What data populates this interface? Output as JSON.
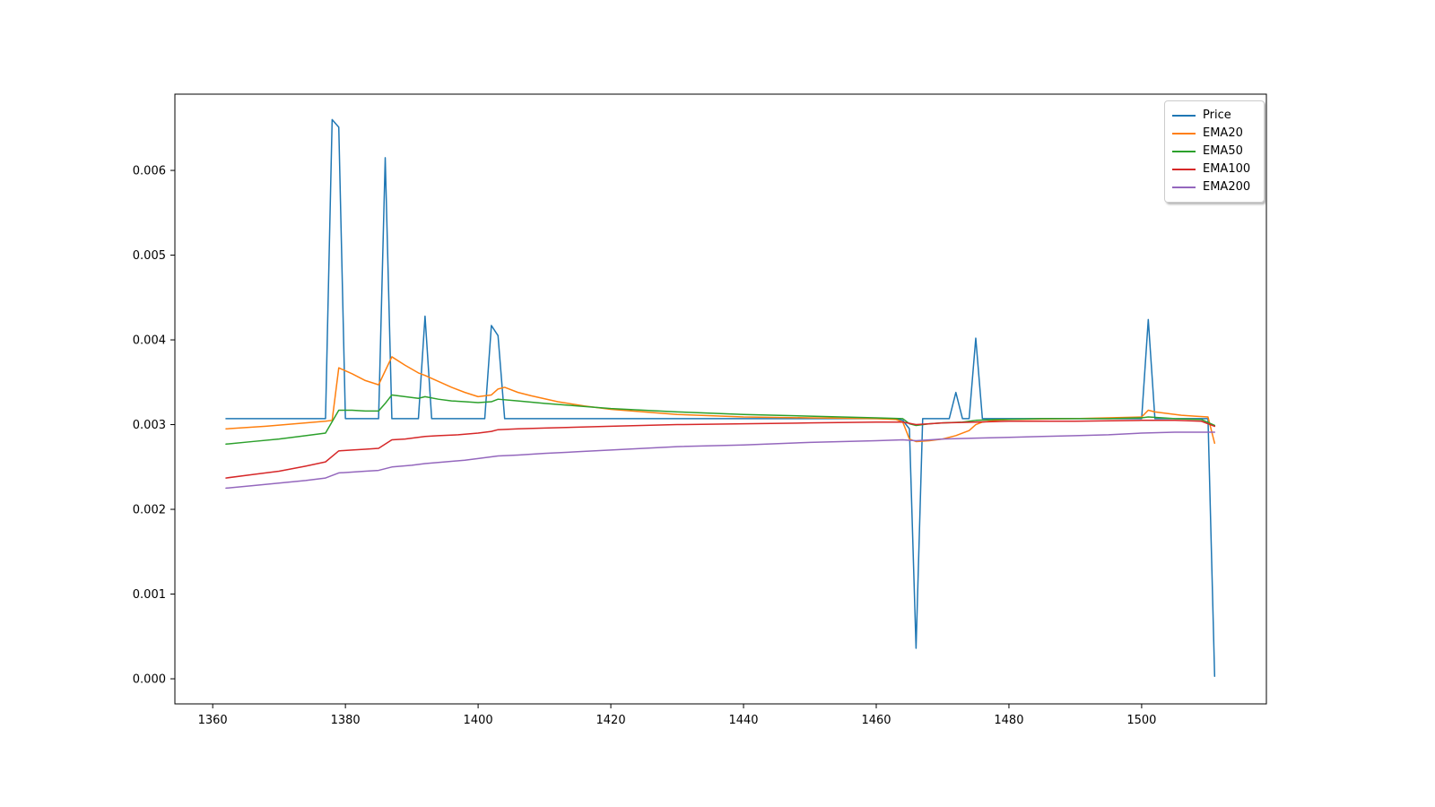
{
  "figure": {
    "background": "#ffffff",
    "axes_border_color": "#000000",
    "tick_color": "#000000",
    "tick_label_color": "#000000"
  },
  "chart_data": {
    "type": "line",
    "title": "",
    "xlabel": "",
    "ylabel": "",
    "grid": false,
    "legend_position": "upper right",
    "xlim": [
      1354.3,
      1518.8
    ],
    "ylim": [
      -0.000296,
      0.0069
    ],
    "x_ticks": [
      1360,
      1380,
      1400,
      1420,
      1440,
      1460,
      1480,
      1500
    ],
    "x_tick_labels": [
      "1360",
      "1380",
      "1400",
      "1420",
      "1440",
      "1460",
      "1480",
      "1500"
    ],
    "y_ticks": [
      0.0,
      0.001,
      0.002,
      0.003,
      0.004,
      0.005,
      0.006
    ],
    "y_tick_labels": [
      "0.000",
      "0.001",
      "0.002",
      "0.003",
      "0.004",
      "0.005",
      "0.006"
    ],
    "series": [
      {
        "name": "Price",
        "color": "#1f77b4",
        "points": [
          [
            1362,
            0.00307
          ],
          [
            1377,
            0.00307
          ],
          [
            1378,
            0.0066
          ],
          [
            1379,
            0.00651
          ],
          [
            1380,
            0.00307
          ],
          [
            1385,
            0.00307
          ],
          [
            1386,
            0.00615
          ],
          [
            1387,
            0.00307
          ],
          [
            1391,
            0.00307
          ],
          [
            1392,
            0.00428
          ],
          [
            1393,
            0.00307
          ],
          [
            1401,
            0.00307
          ],
          [
            1402,
            0.00417
          ],
          [
            1403,
            0.00405
          ],
          [
            1404,
            0.00307
          ],
          [
            1440,
            0.00307
          ],
          [
            1463,
            0.00307
          ],
          [
            1464,
            0.00305
          ],
          [
            1465,
            0.00295
          ],
          [
            1466,
            0.00036
          ],
          [
            1467,
            0.00307
          ],
          [
            1471,
            0.00307
          ],
          [
            1472,
            0.00338
          ],
          [
            1473,
            0.00307
          ],
          [
            1474,
            0.00307
          ],
          [
            1475,
            0.00402
          ],
          [
            1476,
            0.00307
          ],
          [
            1490,
            0.00307
          ],
          [
            1500,
            0.00307
          ],
          [
            1501,
            0.00424
          ],
          [
            1502,
            0.00307
          ],
          [
            1510,
            0.00307
          ],
          [
            1511,
            3e-05
          ]
        ]
      },
      {
        "name": "EMA20",
        "color": "#ff7f0e",
        "points": [
          [
            1362,
            0.00295
          ],
          [
            1368,
            0.00298
          ],
          [
            1374,
            0.00302
          ],
          [
            1377,
            0.00304
          ],
          [
            1378,
            0.00305
          ],
          [
            1379,
            0.00367
          ],
          [
            1381,
            0.0036
          ],
          [
            1383,
            0.00352
          ],
          [
            1385,
            0.00347
          ],
          [
            1387,
            0.0038
          ],
          [
            1389,
            0.0037
          ],
          [
            1391,
            0.00361
          ],
          [
            1392,
            0.00358
          ],
          [
            1394,
            0.00351
          ],
          [
            1396,
            0.00344
          ],
          [
            1398,
            0.00338
          ],
          [
            1400,
            0.00333
          ],
          [
            1402,
            0.00335
          ],
          [
            1403,
            0.00342
          ],
          [
            1404,
            0.00344
          ],
          [
            1406,
            0.00338
          ],
          [
            1408,
            0.00334
          ],
          [
            1412,
            0.00327
          ],
          [
            1416,
            0.00322
          ],
          [
            1420,
            0.00318
          ],
          [
            1425,
            0.00315
          ],
          [
            1430,
            0.00312
          ],
          [
            1440,
            0.00309
          ],
          [
            1450,
            0.00308
          ],
          [
            1460,
            0.00307
          ],
          [
            1463,
            0.00306
          ],
          [
            1464,
            0.00303
          ],
          [
            1465,
            0.00283
          ],
          [
            1466,
            0.0028
          ],
          [
            1468,
            0.00281
          ],
          [
            1470,
            0.00283
          ],
          [
            1472,
            0.00287
          ],
          [
            1474,
            0.00293
          ],
          [
            1475,
            0.003
          ],
          [
            1476,
            0.00303
          ],
          [
            1478,
            0.00305
          ],
          [
            1480,
            0.00306
          ],
          [
            1490,
            0.00307
          ],
          [
            1500,
            0.00309
          ],
          [
            1501,
            0.00317
          ],
          [
            1502,
            0.00315
          ],
          [
            1504,
            0.00313
          ],
          [
            1506,
            0.00311
          ],
          [
            1508,
            0.0031
          ],
          [
            1510,
            0.00309
          ],
          [
            1511,
            0.00278
          ]
        ]
      },
      {
        "name": "EMA50",
        "color": "#2ca02c",
        "points": [
          [
            1362,
            0.00277
          ],
          [
            1366,
            0.0028
          ],
          [
            1370,
            0.00283
          ],
          [
            1374,
            0.00287
          ],
          [
            1377,
            0.0029
          ],
          [
            1379,
            0.00317
          ],
          [
            1381,
            0.00317
          ],
          [
            1383,
            0.00316
          ],
          [
            1385,
            0.00316
          ],
          [
            1386,
            0.00325
          ],
          [
            1387,
            0.00335
          ],
          [
            1389,
            0.00333
          ],
          [
            1391,
            0.00331
          ],
          [
            1392,
            0.00333
          ],
          [
            1394,
            0.0033
          ],
          [
            1396,
            0.00328
          ],
          [
            1398,
            0.00327
          ],
          [
            1400,
            0.00326
          ],
          [
            1402,
            0.00327
          ],
          [
            1403,
            0.0033
          ],
          [
            1406,
            0.00328
          ],
          [
            1410,
            0.00325
          ],
          [
            1415,
            0.00322
          ],
          [
            1420,
            0.00319
          ],
          [
            1430,
            0.00315
          ],
          [
            1440,
            0.00312
          ],
          [
            1450,
            0.0031
          ],
          [
            1460,
            0.00308
          ],
          [
            1464,
            0.00307
          ],
          [
            1465,
            0.00301
          ],
          [
            1466,
            0.00299
          ],
          [
            1468,
            0.00301
          ],
          [
            1470,
            0.00302
          ],
          [
            1473,
            0.00303
          ],
          [
            1475,
            0.00305
          ],
          [
            1478,
            0.00306
          ],
          [
            1485,
            0.00307
          ],
          [
            1495,
            0.00307
          ],
          [
            1500,
            0.00308
          ],
          [
            1501,
            0.00309
          ],
          [
            1505,
            0.00307
          ],
          [
            1509,
            0.00306
          ],
          [
            1511,
            0.00299
          ]
        ]
      },
      {
        "name": "EMA100",
        "color": "#d62728",
        "points": [
          [
            1362,
            0.00237
          ],
          [
            1366,
            0.00241
          ],
          [
            1370,
            0.00245
          ],
          [
            1374,
            0.00251
          ],
          [
            1377,
            0.00256
          ],
          [
            1379,
            0.00269
          ],
          [
            1381,
            0.0027
          ],
          [
            1383,
            0.00271
          ],
          [
            1385,
            0.00272
          ],
          [
            1387,
            0.00282
          ],
          [
            1389,
            0.00283
          ],
          [
            1392,
            0.00286
          ],
          [
            1394,
            0.00287
          ],
          [
            1397,
            0.00288
          ],
          [
            1400,
            0.0029
          ],
          [
            1402,
            0.00292
          ],
          [
            1403,
            0.00294
          ],
          [
            1406,
            0.00295
          ],
          [
            1410,
            0.00296
          ],
          [
            1415,
            0.00297
          ],
          [
            1420,
            0.00298
          ],
          [
            1430,
            0.003
          ],
          [
            1440,
            0.00301
          ],
          [
            1450,
            0.00302
          ],
          [
            1460,
            0.00303
          ],
          [
            1464,
            0.00303
          ],
          [
            1466,
            0.003
          ],
          [
            1468,
            0.00301
          ],
          [
            1470,
            0.00302
          ],
          [
            1475,
            0.00303
          ],
          [
            1480,
            0.00304
          ],
          [
            1490,
            0.00304
          ],
          [
            1500,
            0.00305
          ],
          [
            1505,
            0.00305
          ],
          [
            1509,
            0.00304
          ],
          [
            1511,
            0.00298
          ]
        ]
      },
      {
        "name": "EMA200",
        "color": "#9467bd",
        "points": [
          [
            1362,
            0.00225
          ],
          [
            1366,
            0.00228
          ],
          [
            1370,
            0.00231
          ],
          [
            1374,
            0.00234
          ],
          [
            1377,
            0.00237
          ],
          [
            1379,
            0.00243
          ],
          [
            1381,
            0.00244
          ],
          [
            1383,
            0.00245
          ],
          [
            1385,
            0.00246
          ],
          [
            1387,
            0.0025
          ],
          [
            1390,
            0.00252
          ],
          [
            1392,
            0.00254
          ],
          [
            1395,
            0.00256
          ],
          [
            1398,
            0.00258
          ],
          [
            1400,
            0.0026
          ],
          [
            1403,
            0.00263
          ],
          [
            1406,
            0.00264
          ],
          [
            1410,
            0.00266
          ],
          [
            1415,
            0.00268
          ],
          [
            1420,
            0.0027
          ],
          [
            1425,
            0.00272
          ],
          [
            1430,
            0.00274
          ],
          [
            1440,
            0.00276
          ],
          [
            1450,
            0.00279
          ],
          [
            1460,
            0.00281
          ],
          [
            1464,
            0.00282
          ],
          [
            1466,
            0.00281
          ],
          [
            1470,
            0.00283
          ],
          [
            1475,
            0.00284
          ],
          [
            1480,
            0.00285
          ],
          [
            1485,
            0.00286
          ],
          [
            1490,
            0.00287
          ],
          [
            1495,
            0.00288
          ],
          [
            1500,
            0.0029
          ],
          [
            1505,
            0.00291
          ],
          [
            1511,
            0.00291
          ]
        ]
      }
    ]
  }
}
